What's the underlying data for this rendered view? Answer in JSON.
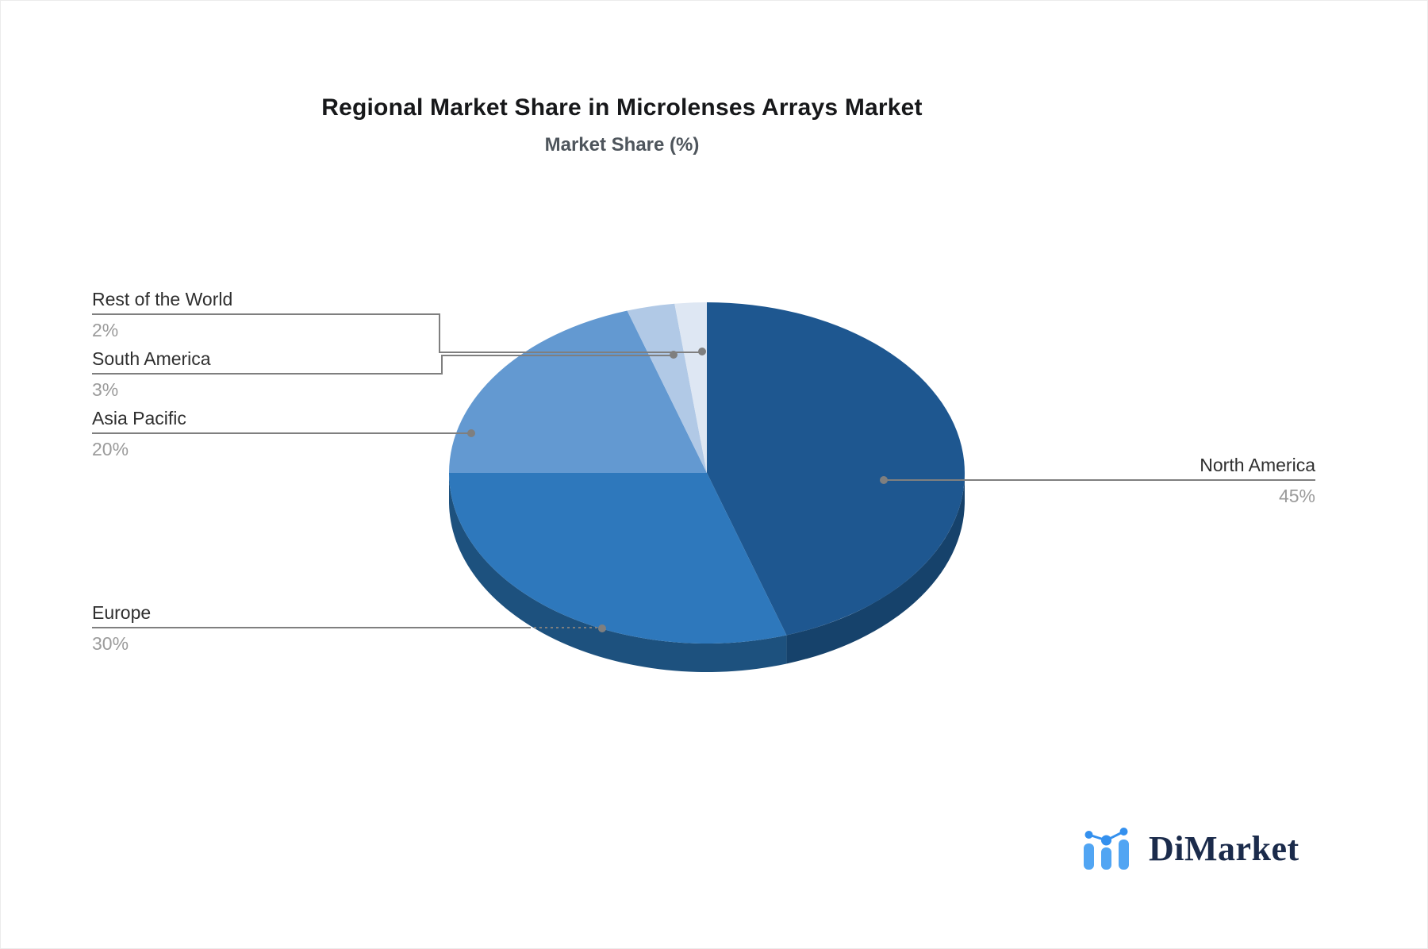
{
  "title": "Regional Market Share in Microlenses Arrays Market",
  "subtitle": "Market Share (%)",
  "chart_data": {
    "type": "pie",
    "title": "Regional Market Share in Microlenses Arrays Market",
    "subtitle": "Market Share (%)",
    "unit": "%",
    "direction": "clockwise",
    "start_angle": "12 o'clock",
    "style": "3d-depth",
    "legend_position": "callout-labels",
    "segments": [
      {
        "label": "North America",
        "value": 45,
        "color": "#1E5790",
        "side_color": "#16426B"
      },
      {
        "label": "Europe",
        "value": 30,
        "color": "#2E78BC",
        "side_color": "#1D517E"
      },
      {
        "label": "Asia Pacific",
        "value": 20,
        "color": "#6399D1",
        "side_color": "#44699A"
      },
      {
        "label": "South America",
        "value": 3,
        "color": "#B1C9E6",
        "side_color": "#7C8FA9"
      },
      {
        "label": "Rest of the World",
        "value": 2,
        "color": "#DEE7F3",
        "side_color": "#9AA6B6"
      }
    ]
  },
  "callouts": {
    "rest_of_the_world": {
      "label": "Rest of the World",
      "value": "2%"
    },
    "south_america": {
      "label": "South America",
      "value": "3%"
    },
    "asia_pacific": {
      "label": "Asia Pacific",
      "value": "20%"
    },
    "europe": {
      "label": "Europe",
      "value": "30%"
    },
    "north_america": {
      "label": "North America",
      "value": "45%"
    }
  },
  "logo": {
    "text": "DiMarket"
  },
  "colors": {
    "leader_line": "#7F7F7F",
    "label_text": "#2F2F2F",
    "value_text": "#9B9B9B",
    "title_text": "#17181A",
    "subtitle_text": "#4E555C",
    "logo_text": "#1B2B4B",
    "logo_icon_blue": "#4AA2F4"
  }
}
